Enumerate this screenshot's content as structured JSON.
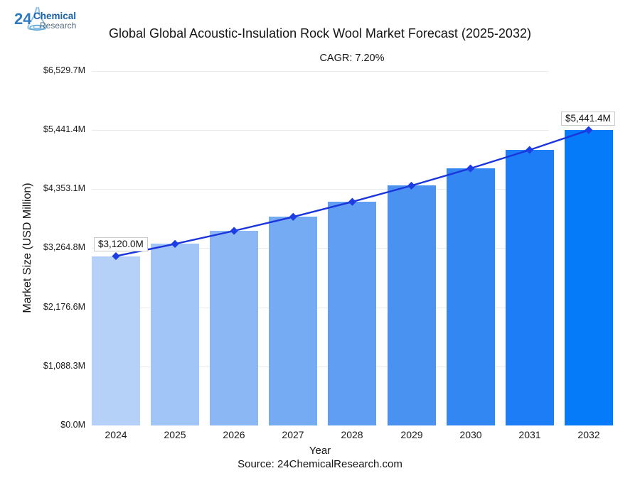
{
  "logo": {
    "number": "24",
    "line1": "Chemical",
    "line2": "Research"
  },
  "chart_data": {
    "type": "bar",
    "title": "Global Global Acoustic-Insulation Rock Wool Market Forecast (2025-2032)",
    "subtitle": "CAGR: 7.20%",
    "xlabel": "Year",
    "ylabel": "Market Size (USD Million)",
    "categories": [
      "2024",
      "2025",
      "2026",
      "2027",
      "2028",
      "2029",
      "2030",
      "2031",
      "2032"
    ],
    "series": [
      {
        "name": "Market Size bars",
        "type": "bar",
        "values": [
          3120.0,
          3344.6,
          3585.5,
          3843.6,
          4120.3,
          4417.0,
          4735.0,
          5076.0,
          5441.4
        ]
      },
      {
        "name": "Market Size trend line",
        "type": "line",
        "marker": "diamond",
        "values": [
          3120.0,
          3344.6,
          3585.5,
          3843.6,
          4120.3,
          4417.0,
          4735.0,
          5076.0,
          5441.4
        ]
      }
    ],
    "y_ticks": [
      "$0.0M",
      "$1,088.3M",
      "$2,176.6M",
      "$3,264.8M",
      "$4,353.1M",
      "$5,441.4M",
      "$6,529.7M"
    ],
    "y_tick_values": [
      0,
      1088.3,
      2176.6,
      3264.8,
      4353.1,
      5441.4,
      6529.7
    ],
    "ylim": [
      0,
      6529.7
    ],
    "grid": true,
    "legend": "none",
    "annotations": [
      {
        "x": "2024",
        "label": "$3,120.0M"
      },
      {
        "x": "2032",
        "label": "$5,441.4M"
      }
    ],
    "bar_colors": [
      "#b5d1f8",
      "#a0c5f6",
      "#8bb8f4",
      "#75abf3",
      "#5f9ef2",
      "#4992f2",
      "#3387f3",
      "#1c7df6",
      "#067bfa"
    ],
    "line_color": "#1b35dc",
    "marker_color": "#1d3ee2",
    "grid_color": "#eaeaea"
  },
  "footer": {
    "source": "Source: 24ChemicalResearch.com"
  }
}
